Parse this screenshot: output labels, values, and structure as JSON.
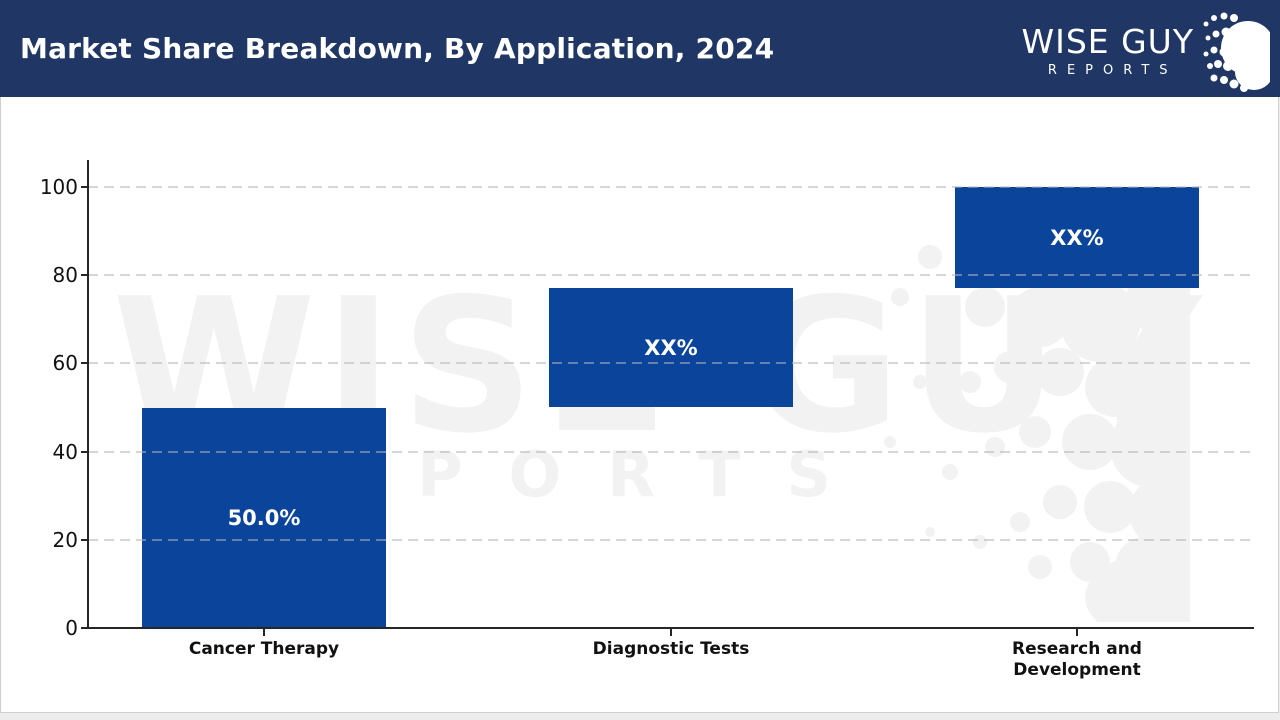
{
  "header": {
    "title": "Market Share Breakdown, By Application, 2024",
    "logo": {
      "line1": "WISE GUY",
      "line2": "REPORTS"
    }
  },
  "watermark": {
    "line1": "WISE GUY",
    "line2": "REPORTS"
  },
  "colors": {
    "header_bg": "#203664",
    "bar_fill": "#0a459b",
    "grid_line": "#d6d6d6",
    "axis_line": "#262626",
    "tick_text": "#111111",
    "bar_label_text": "#ffffff",
    "watermark": "#f2f2f2",
    "panel_border": "#cfcfcf",
    "page_edge_bg": "#ededed"
  },
  "chart_data": {
    "type": "bar",
    "variant": "floating-waterfall",
    "title": "Market Share Breakdown, By Application, 2024",
    "categories": [
      "Cancer Therapy",
      "Diagnostic Tests",
      "Research and Development"
    ],
    "segments": [
      {
        "category": "Cancer Therapy",
        "start": 0,
        "end": 50,
        "label": "50.0%"
      },
      {
        "category": "Diagnostic Tests",
        "start": 50,
        "end": 77,
        "label": "XX%"
      },
      {
        "category": "Research and Development",
        "start": 77,
        "end": 100,
        "label": "XX%"
      }
    ],
    "values_shown": [
      "50.0%",
      "XX%",
      "XX%"
    ],
    "yticks": [
      0,
      20,
      40,
      60,
      80,
      100
    ],
    "ylim": [
      0,
      106
    ],
    "xlabel": "",
    "ylabel": "",
    "grid": "horizontal-dashed",
    "legend": false
  }
}
